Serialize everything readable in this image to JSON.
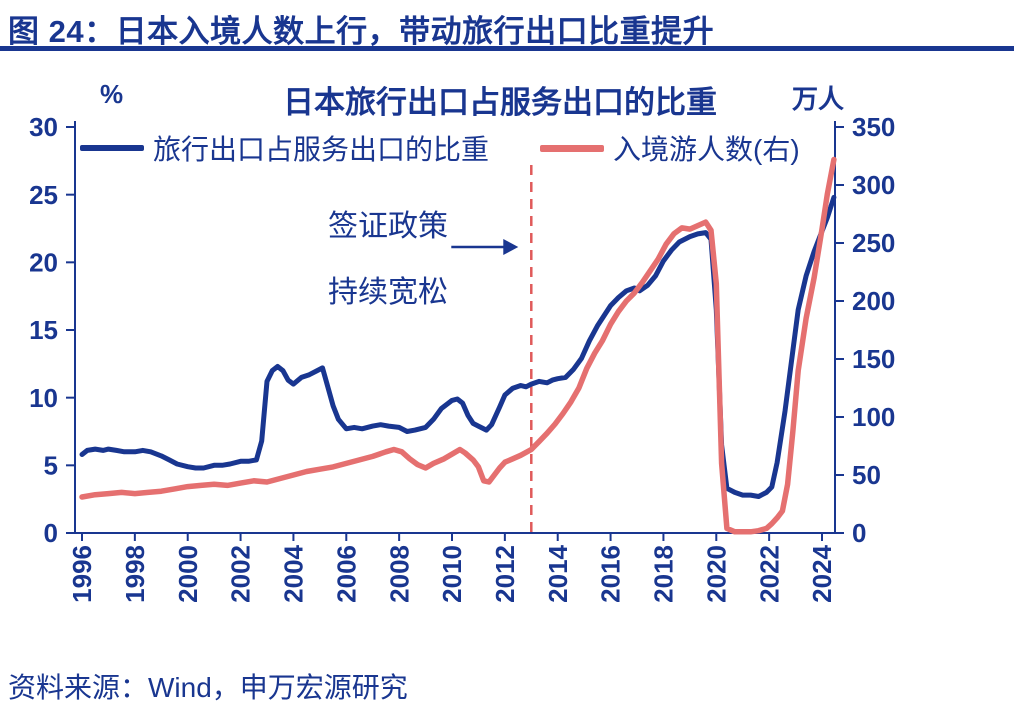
{
  "page": {
    "title": "图 24：日本入境人数上行，带动旅行出口比重提升",
    "source": "资料来源：Wind，申万宏源研究"
  },
  "colors": {
    "navy": "#193690",
    "line_blue": "#193690",
    "line_red": "#E57070",
    "dashed_red": "#E05A5A",
    "background": "#FFFFFF"
  },
  "chart_data": {
    "type": "line",
    "title": "日本旅行出口占服务出口的比重",
    "left_axis": {
      "label": "%",
      "min": 0,
      "max": 30,
      "ticks": [
        0,
        5,
        10,
        15,
        20,
        25,
        30
      ]
    },
    "right_axis": {
      "label": "万人",
      "min": 0,
      "max": 350,
      "ticks": [
        0,
        50,
        100,
        150,
        200,
        250,
        300,
        350
      ]
    },
    "x_axis": {
      "min": 1995.7,
      "max": 2024.6,
      "ticks": [
        1996,
        1998,
        2000,
        2002,
        2004,
        2006,
        2008,
        2010,
        2012,
        2014,
        2016,
        2018,
        2020,
        2022,
        2024
      ]
    },
    "annotation": {
      "line1": "签证政策",
      "line2": "持续宽松",
      "at_year": 2013
    },
    "legend_position": "top",
    "grid": false,
    "series": [
      {
        "name": "旅行出口占服务出口的比重",
        "axis": "left",
        "color": "#193690",
        "width": 5,
        "points": [
          [
            1996.0,
            5.8
          ],
          [
            1996.2,
            6.1
          ],
          [
            1996.5,
            6.2
          ],
          [
            1996.8,
            6.1
          ],
          [
            1997.0,
            6.2
          ],
          [
            1997.3,
            6.1
          ],
          [
            1997.6,
            6.0
          ],
          [
            1998.0,
            6.0
          ],
          [
            1998.3,
            6.1
          ],
          [
            1998.6,
            6.0
          ],
          [
            1999.0,
            5.7
          ],
          [
            1999.3,
            5.4
          ],
          [
            1999.6,
            5.1
          ],
          [
            2000.0,
            4.9
          ],
          [
            2000.3,
            4.8
          ],
          [
            2000.6,
            4.8
          ],
          [
            2001.0,
            5.0
          ],
          [
            2001.3,
            5.0
          ],
          [
            2001.6,
            5.1
          ],
          [
            2002.0,
            5.3
          ],
          [
            2002.3,
            5.3
          ],
          [
            2002.6,
            5.4
          ],
          [
            2002.8,
            6.8
          ],
          [
            2003.0,
            11.2
          ],
          [
            2003.2,
            12.0
          ],
          [
            2003.4,
            12.3
          ],
          [
            2003.6,
            12.0
          ],
          [
            2003.8,
            11.3
          ],
          [
            2004.0,
            11.0
          ],
          [
            2004.3,
            11.5
          ],
          [
            2004.6,
            11.7
          ],
          [
            2004.9,
            12.0
          ],
          [
            2005.1,
            12.2
          ],
          [
            2005.3,
            10.8
          ],
          [
            2005.5,
            9.4
          ],
          [
            2005.7,
            8.4
          ],
          [
            2006.0,
            7.7
          ],
          [
            2006.3,
            7.8
          ],
          [
            2006.6,
            7.7
          ],
          [
            2007.0,
            7.9
          ],
          [
            2007.3,
            8.0
          ],
          [
            2007.6,
            7.9
          ],
          [
            2008.0,
            7.8
          ],
          [
            2008.3,
            7.5
          ],
          [
            2008.6,
            7.6
          ],
          [
            2009.0,
            7.8
          ],
          [
            2009.3,
            8.4
          ],
          [
            2009.6,
            9.2
          ],
          [
            2010.0,
            9.8
          ],
          [
            2010.2,
            9.9
          ],
          [
            2010.4,
            9.6
          ],
          [
            2010.6,
            8.7
          ],
          [
            2010.8,
            8.1
          ],
          [
            2011.0,
            7.9
          ],
          [
            2011.3,
            7.6
          ],
          [
            2011.5,
            8.0
          ],
          [
            2011.8,
            9.3
          ],
          [
            2012.0,
            10.2
          ],
          [
            2012.3,
            10.7
          ],
          [
            2012.6,
            10.9
          ],
          [
            2012.8,
            10.8
          ],
          [
            2013.0,
            11.0
          ],
          [
            2013.3,
            11.2
          ],
          [
            2013.6,
            11.1
          ],
          [
            2013.8,
            11.3
          ],
          [
            2014.0,
            11.4
          ],
          [
            2014.3,
            11.5
          ],
          [
            2014.6,
            12.1
          ],
          [
            2014.9,
            12.9
          ],
          [
            2015.2,
            14.2
          ],
          [
            2015.5,
            15.3
          ],
          [
            2015.8,
            16.2
          ],
          [
            2016.0,
            16.8
          ],
          [
            2016.3,
            17.4
          ],
          [
            2016.6,
            17.9
          ],
          [
            2016.9,
            18.1
          ],
          [
            2017.1,
            17.9
          ],
          [
            2017.4,
            18.3
          ],
          [
            2017.7,
            19.0
          ],
          [
            2018.0,
            20.1
          ],
          [
            2018.3,
            20.9
          ],
          [
            2018.6,
            21.5
          ],
          [
            2019.0,
            21.9
          ],
          [
            2019.3,
            22.1
          ],
          [
            2019.6,
            22.2
          ],
          [
            2019.8,
            21.7
          ],
          [
            2020.0,
            16.5
          ],
          [
            2020.2,
            6.5
          ],
          [
            2020.4,
            3.3
          ],
          [
            2020.7,
            3.0
          ],
          [
            2021.0,
            2.8
          ],
          [
            2021.3,
            2.8
          ],
          [
            2021.6,
            2.7
          ],
          [
            2021.9,
            3.0
          ],
          [
            2022.1,
            3.4
          ],
          [
            2022.3,
            5.2
          ],
          [
            2022.6,
            9.0
          ],
          [
            2022.9,
            13.5
          ],
          [
            2023.1,
            16.5
          ],
          [
            2023.4,
            19.0
          ],
          [
            2023.7,
            20.8
          ],
          [
            2024.0,
            22.3
          ],
          [
            2024.2,
            23.3
          ],
          [
            2024.45,
            24.8
          ]
        ]
      },
      {
        "name": "入境游人数(右)",
        "axis": "right",
        "color": "#E57070",
        "width": 5.5,
        "points": [
          [
            1996.0,
            31
          ],
          [
            1996.5,
            33
          ],
          [
            1997.0,
            34
          ],
          [
            1997.5,
            35
          ],
          [
            1998.0,
            34
          ],
          [
            1998.5,
            35
          ],
          [
            1999.0,
            36
          ],
          [
            1999.5,
            38
          ],
          [
            2000.0,
            40
          ],
          [
            2000.5,
            41
          ],
          [
            2001.0,
            42
          ],
          [
            2001.5,
            41
          ],
          [
            2002.0,
            43
          ],
          [
            2002.5,
            45
          ],
          [
            2003.0,
            44
          ],
          [
            2003.5,
            47
          ],
          [
            2004.0,
            50
          ],
          [
            2004.5,
            53
          ],
          [
            2005.0,
            55
          ],
          [
            2005.5,
            57
          ],
          [
            2006.0,
            60
          ],
          [
            2006.5,
            63
          ],
          [
            2007.0,
            66
          ],
          [
            2007.5,
            70
          ],
          [
            2007.8,
            72
          ],
          [
            2008.1,
            70
          ],
          [
            2008.4,
            64
          ],
          [
            2008.7,
            59
          ],
          [
            2009.0,
            56
          ],
          [
            2009.3,
            60
          ],
          [
            2009.7,
            64
          ],
          [
            2010.0,
            68
          ],
          [
            2010.3,
            72
          ],
          [
            2010.5,
            69
          ],
          [
            2010.8,
            63
          ],
          [
            2011.0,
            57
          ],
          [
            2011.2,
            45
          ],
          [
            2011.4,
            44
          ],
          [
            2011.6,
            50
          ],
          [
            2011.8,
            56
          ],
          [
            2012.0,
            61
          ],
          [
            2012.3,
            64
          ],
          [
            2012.6,
            67
          ],
          [
            2013.0,
            72
          ],
          [
            2013.3,
            79
          ],
          [
            2013.6,
            86
          ],
          [
            2013.9,
            94
          ],
          [
            2014.2,
            103
          ],
          [
            2014.5,
            113
          ],
          [
            2014.8,
            125
          ],
          [
            2015.1,
            142
          ],
          [
            2015.4,
            155
          ],
          [
            2015.7,
            166
          ],
          [
            2016.0,
            180
          ],
          [
            2016.3,
            191
          ],
          [
            2016.6,
            200
          ],
          [
            2016.9,
            207
          ],
          [
            2017.2,
            216
          ],
          [
            2017.5,
            226
          ],
          [
            2017.8,
            236
          ],
          [
            2018.1,
            249
          ],
          [
            2018.4,
            258
          ],
          [
            2018.7,
            263
          ],
          [
            2019.0,
            262
          ],
          [
            2019.3,
            265
          ],
          [
            2019.6,
            268
          ],
          [
            2019.8,
            261
          ],
          [
            2020.0,
            215
          ],
          [
            2020.2,
            60
          ],
          [
            2020.4,
            4
          ],
          [
            2020.7,
            1
          ],
          [
            2021.0,
            1
          ],
          [
            2021.3,
            1
          ],
          [
            2021.6,
            2
          ],
          [
            2021.9,
            4
          ],
          [
            2022.1,
            8
          ],
          [
            2022.3,
            13
          ],
          [
            2022.5,
            19
          ],
          [
            2022.7,
            42
          ],
          [
            2022.9,
            88
          ],
          [
            2023.1,
            140
          ],
          [
            2023.4,
            185
          ],
          [
            2023.7,
            220
          ],
          [
            2024.0,
            262
          ],
          [
            2024.2,
            292
          ],
          [
            2024.45,
            322
          ]
        ]
      }
    ]
  }
}
